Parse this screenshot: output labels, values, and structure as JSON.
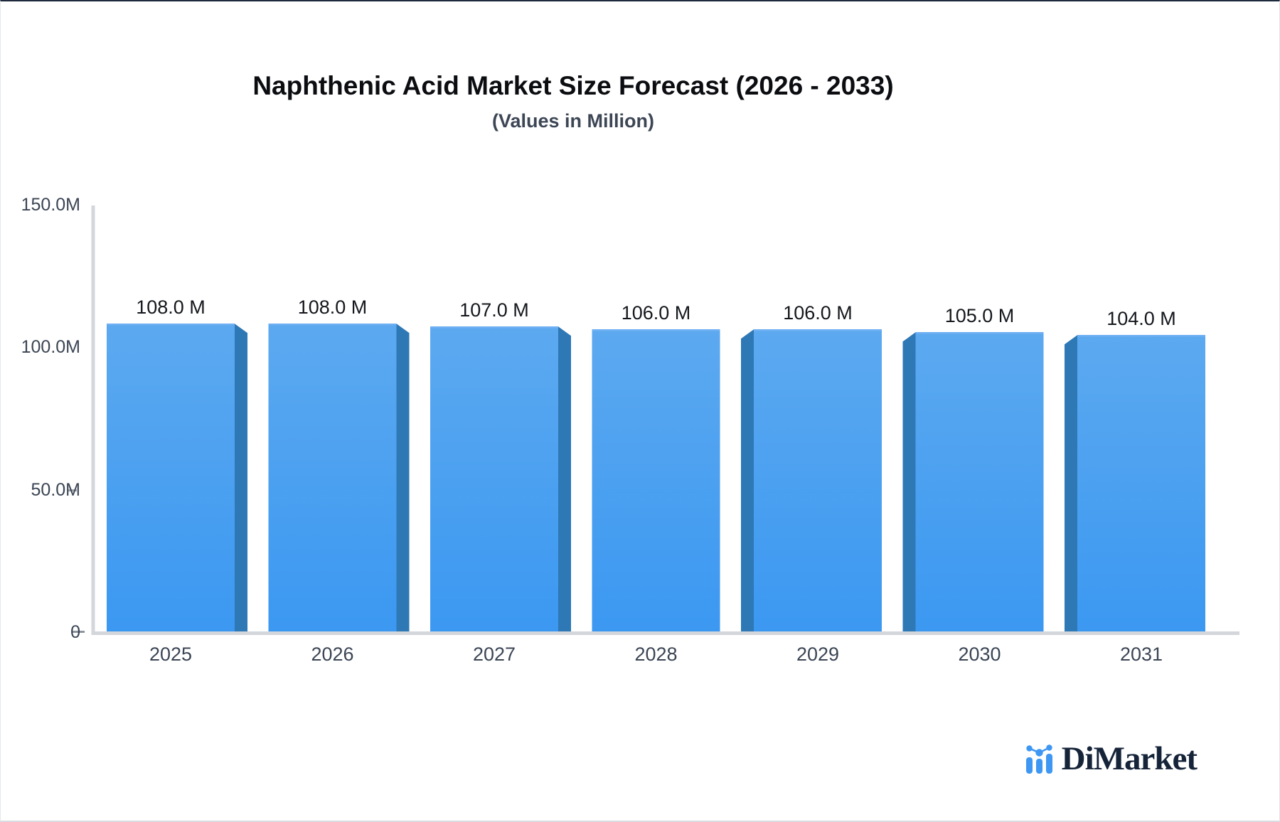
{
  "page": {
    "title": "Naphthenic Acid Market Size Forecast (2026 - 2033)",
    "subtitle": "(Values in Million)",
    "brand": {
      "name": "DiMarket",
      "icon": "bar-line-chart-icon",
      "icon_color": "#3e97f3",
      "text_color": "#16243a"
    }
  },
  "chart_data": {
    "type": "bar",
    "style": "3d-extruded-bars",
    "title": "Naphthenic Acid Market Size Forecast (2026 - 2033)",
    "subtitle": "(Values in Million)",
    "categories": [
      "2025",
      "2026",
      "2027",
      "2028",
      "2029",
      "2030",
      "2031"
    ],
    "values": [
      108,
      108,
      107,
      106,
      106,
      105,
      104
    ],
    "value_unit": "Million",
    "bar_labels": [
      "108.0 M",
      "108.0 M",
      "107.0 M",
      "106.0 M",
      "106.0 M",
      "105.0 M",
      "104.0 M"
    ],
    "xlabel": "",
    "ylabel": "",
    "ylim": [
      0,
      150
    ],
    "yticks": [
      {
        "value": 150,
        "label": "150.0M"
      },
      {
        "value": 100,
        "label": "100.0M"
      },
      {
        "value": 50,
        "label": "50.0M"
      },
      {
        "value": 0,
        "label": "0"
      }
    ],
    "grid": false,
    "legend": "none",
    "colors": {
      "bar_face_top": "#5ca9f0",
      "bar_face_bottom": "#3b98f1",
      "bar_face_top_edge": "#6fb0f2",
      "bar_side": "#2e78b6",
      "axis_line": "#d3d6db",
      "tick": "#8d949e",
      "value_label": "#14171c",
      "axis_label": "#3b4554"
    }
  }
}
